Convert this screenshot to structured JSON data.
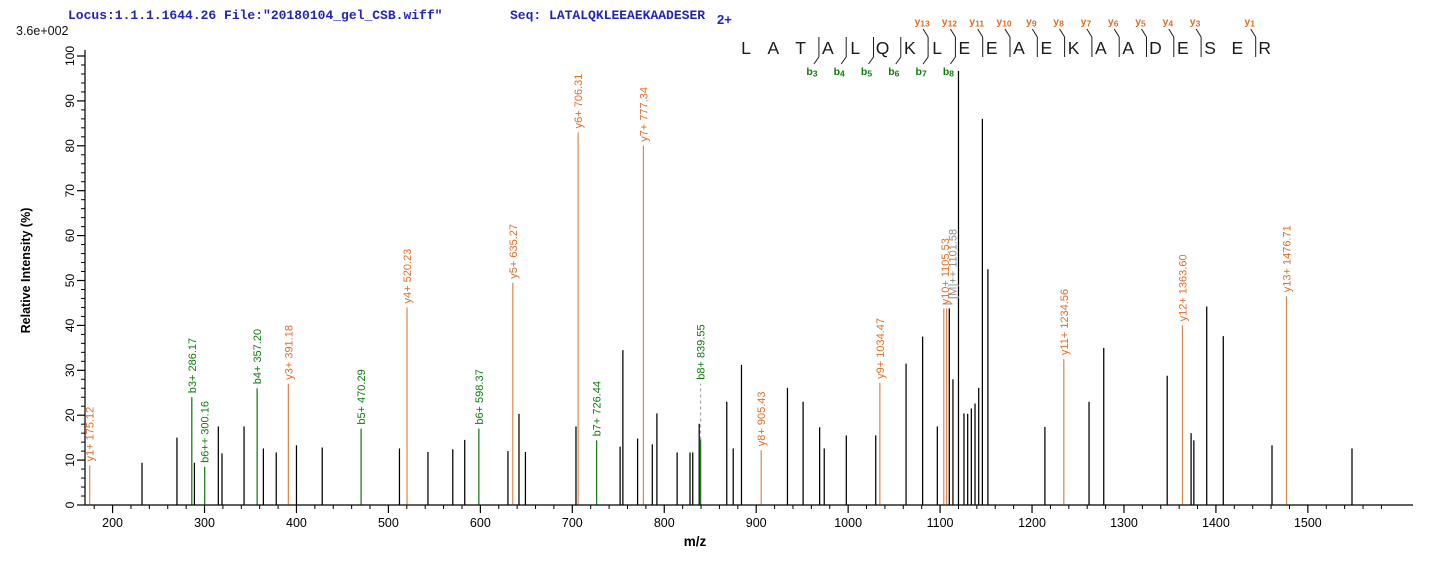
{
  "header": {
    "locus_file": "Locus:1.1.1.1644.26 File:\"20180104_gel_CSB.wiff\"",
    "seq_label": "Seq:",
    "seq_value": "LATALQKLEEAEKAADESER",
    "max_intensity": "3.6e+002",
    "charge": "2+"
  },
  "peptide": {
    "sequence": "LATALQKLEEAEKAADESER",
    "charge": "2+",
    "y_ions": [
      {
        "name": "y13",
        "boundary": 7
      },
      {
        "name": "y12",
        "boundary": 8
      },
      {
        "name": "y11",
        "boundary": 9
      },
      {
        "name": "y10",
        "boundary": 10
      },
      {
        "name": "y9",
        "boundary": 11
      },
      {
        "name": "y8",
        "boundary": 12
      },
      {
        "name": "y7",
        "boundary": 13
      },
      {
        "name": "y6",
        "boundary": 14
      },
      {
        "name": "y5",
        "boundary": 15
      },
      {
        "name": "y4",
        "boundary": 16
      },
      {
        "name": "y3",
        "boundary": 17
      },
      {
        "name": "y1",
        "boundary": 19
      }
    ],
    "b_ions": [
      {
        "name": "b3",
        "boundary": 3
      },
      {
        "name": "b4",
        "boundary": 4
      },
      {
        "name": "b5",
        "boundary": 5
      },
      {
        "name": "b6",
        "boundary": 6
      },
      {
        "name": "b7",
        "boundary": 7
      },
      {
        "name": "b8",
        "boundary": 8
      }
    ]
  },
  "chart_data": {
    "type": "bar",
    "subtype": "ms2_centroid_spectrum",
    "title": "",
    "xlabel": "m/z",
    "ylabel": "Relative  Intensity (%)",
    "xlim": [
      170,
      1610
    ],
    "ylim": [
      0,
      100
    ],
    "x_ticks": [
      200,
      300,
      400,
      500,
      600,
      700,
      800,
      900,
      1000,
      1100,
      1200,
      1300,
      1400,
      1500
    ],
    "x_minor_step": 20,
    "y_ticks": [
      0,
      10,
      20,
      30,
      40,
      50,
      60,
      70,
      80,
      90,
      100
    ],
    "y_minor_step": 2,
    "base_peak_intensity": "3.6e+002",
    "legend_position": "none",
    "grid": false,
    "annotated_peaks": [
      {
        "label": "y1+ 175.12",
        "mz": 175.12,
        "intensity": 8.8,
        "series": "y"
      },
      {
        "label": "b3+ 286.17",
        "mz": 286.17,
        "intensity": 24,
        "series": "b"
      },
      {
        "label": "b6++ 300.16",
        "mz": 300.16,
        "intensity": 8.5,
        "series": "b"
      },
      {
        "label": "b4+ 357.20",
        "mz": 357.2,
        "intensity": 26,
        "series": "b"
      },
      {
        "label": "y3+ 391.18",
        "mz": 391.18,
        "intensity": 27,
        "series": "y"
      },
      {
        "label": "b5+ 470.29",
        "mz": 470.29,
        "intensity": 17,
        "series": "b"
      },
      {
        "label": "y4+ 520.23",
        "mz": 520.23,
        "intensity": 44,
        "series": "y"
      },
      {
        "label": "b6+ 598.37",
        "mz": 598.37,
        "intensity": 17,
        "series": "b"
      },
      {
        "label": "y5+ 635.27",
        "mz": 635.27,
        "intensity": 49.5,
        "series": "y"
      },
      {
        "label": "y6+ 706.31",
        "mz": 706.31,
        "intensity": 83,
        "series": "y"
      },
      {
        "label": "b7+ 726.44",
        "mz": 726.44,
        "intensity": 14.4,
        "series": "b"
      },
      {
        "label": "y7+ 777.34",
        "mz": 777.34,
        "intensity": 80,
        "series": "y"
      },
      {
        "label": "b8+ 839.55",
        "mz": 839.55,
        "intensity": 14.6,
        "series": "b",
        "leader_to": 27
      },
      {
        "label": "y8+ 905.43",
        "mz": 905.43,
        "intensity": 12.2,
        "series": "y"
      },
      {
        "label": "y9+ 1034.47",
        "mz": 1034.47,
        "intensity": 27.2,
        "series": "y"
      },
      {
        "label": "y10+ 1105.53",
        "mz": 1105.53,
        "intensity": 43.8,
        "series": "y",
        "double": true
      },
      {
        "label": "[M]++ 1101.58",
        "mz": 1101.58,
        "intensity": 43.8,
        "series": "precursor",
        "label_only": true,
        "label_mz": 1113.5,
        "label_from": 45,
        "dash": true
      },
      {
        "label": "y11+ 1234.56",
        "mz": 1234.56,
        "intensity": 32.5,
        "series": "y"
      },
      {
        "label": "y12+ 1363.60",
        "mz": 1363.6,
        "intensity": 40,
        "series": "y"
      },
      {
        "label": "y13+ 1476.71",
        "mz": 1476.71,
        "intensity": 46.5,
        "series": "y"
      }
    ],
    "unassigned_peaks": [
      [
        232,
        9.4
      ],
      [
        270,
        15
      ],
      [
        289,
        9.4
      ],
      [
        315,
        17.5
      ],
      [
        319,
        11.5
      ],
      [
        343,
        17.5
      ],
      [
        364,
        12.6
      ],
      [
        378,
        11.7
      ],
      [
        400,
        13.3
      ],
      [
        428,
        12.8
      ],
      [
        512,
        12.6
      ],
      [
        543,
        11.8
      ],
      [
        570,
        12.4
      ],
      [
        583,
        14.5
      ],
      [
        630,
        12
      ],
      [
        642,
        20.3
      ],
      [
        649,
        11.8
      ],
      [
        704,
        17.5
      ],
      [
        752,
        13
      ],
      [
        755,
        34.5
      ],
      [
        771,
        14.8
      ],
      [
        787,
        13.5
      ],
      [
        792,
        20.4
      ],
      [
        814,
        11.7
      ],
      [
        828,
        11.7
      ],
      [
        831,
        11.7
      ],
      [
        838,
        18.1
      ],
      [
        868,
        23
      ],
      [
        875,
        12.6
      ],
      [
        884,
        31.2
      ],
      [
        934,
        26.1
      ],
      [
        951,
        23
      ],
      [
        969,
        17.3
      ],
      [
        974,
        12.6
      ],
      [
        998,
        15.5
      ],
      [
        1030,
        15.5
      ],
      [
        1063,
        31.5
      ],
      [
        1081,
        37.5
      ],
      [
        1097,
        17.5
      ],
      [
        1110,
        43.8
      ],
      [
        1114,
        28
      ],
      [
        1120,
        96.7
      ],
      [
        1126,
        20.4
      ],
      [
        1130,
        20.3
      ],
      [
        1134,
        21.5
      ],
      [
        1138,
        22.6
      ],
      [
        1142,
        26.1
      ],
      [
        1146,
        86
      ],
      [
        1152,
        52.5
      ],
      [
        1214,
        17.4
      ],
      [
        1262,
        23
      ],
      [
        1278,
        35
      ],
      [
        1347,
        28.8
      ],
      [
        1373,
        16
      ],
      [
        1376,
        14.4
      ],
      [
        1390,
        44.2
      ],
      [
        1408,
        37.6
      ],
      [
        1461,
        13.3
      ],
      [
        1548,
        12.6
      ]
    ]
  },
  "colors": {
    "y_line": "#dc8c52",
    "y_label": "#e06d28",
    "b_line": "#187818",
    "b_label": "#0e7c0e",
    "precursor_label": "#8c8c8c",
    "unassigned": "#000000",
    "axis": "#000000",
    "sequence_text": "#1b1b1b",
    "header_blue": "#2323c0",
    "charge_blue": "#1d1de0"
  }
}
